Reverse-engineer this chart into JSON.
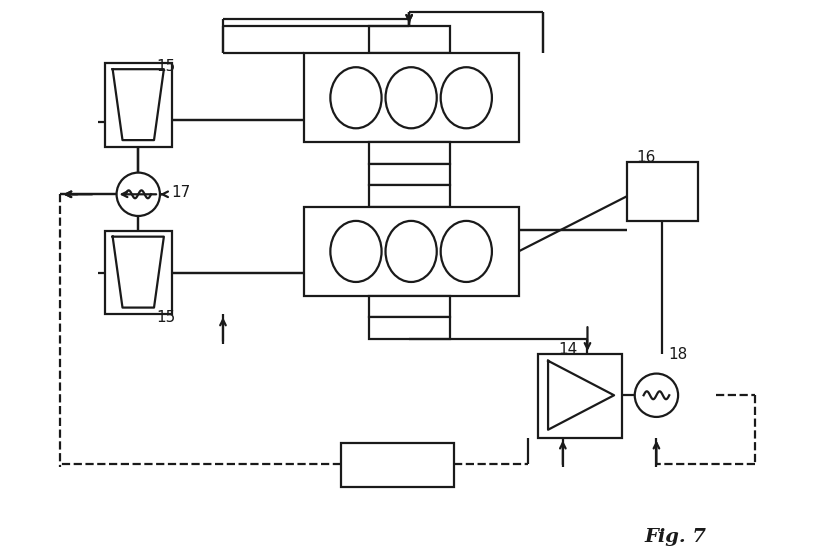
{
  "bg": "#ffffff",
  "lc": "#1a1a1a",
  "lw": 1.6,
  "fig_label": "Fig. 7",
  "label_15a": "15",
  "label_15b": "15",
  "label_16": "16",
  "label_17": "17",
  "label_14": "14",
  "label_18": "18",
  "note_arrow_size": 10
}
